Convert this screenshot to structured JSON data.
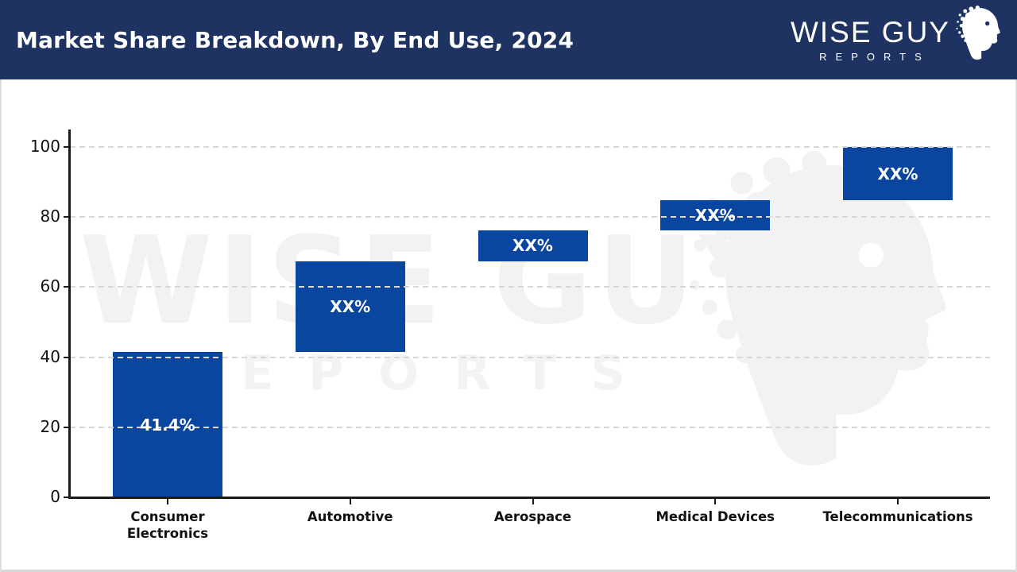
{
  "header": {
    "title": "Market Share Breakdown, By End Use, 2024",
    "bg_color": "#1f3363",
    "brand": {
      "name": "WISE GUY",
      "sub": "REPORTS"
    }
  },
  "watermark": {
    "line1": "WISE GUY",
    "line2": "REPORTS"
  },
  "chart_data": {
    "type": "bar",
    "subtype": "waterfall",
    "title": "Market Share Breakdown, By End Use, 2024",
    "categories": [
      "Consumer Electronics",
      "Automotive",
      "Aerospace",
      "Medical Devices",
      "Telecommunications"
    ],
    "x_labels": [
      "Consumer\nElectronics",
      "Automotive",
      "Aerospace",
      "Medical Devices",
      "Telecommunications"
    ],
    "segments": [
      {
        "label": "Consumer Electronics",
        "start": 0,
        "end": 41.4,
        "value_label": "41.4%"
      },
      {
        "label": "Automotive",
        "start": 41.4,
        "end": 67.4,
        "value_label": "XX%"
      },
      {
        "label": "Aerospace",
        "start": 67.4,
        "end": 76.2,
        "value_label": "XX%"
      },
      {
        "label": "Medical Devices",
        "start": 76.2,
        "end": 84.8,
        "value_label": "XX%"
      },
      {
        "label": "Telecommunications",
        "start": 84.8,
        "end": 100,
        "value_label": "XX%"
      }
    ],
    "y_ticks": [
      0,
      20,
      40,
      60,
      80,
      100
    ],
    "ylim": [
      0,
      105
    ],
    "xlabel": "",
    "ylabel": "",
    "grid": "horizontal-dashed, drawn over bars",
    "legend": "none",
    "bar_color": "#0a45a0",
    "value_label_color": "#ffffff",
    "grid_color": "#d7d7d7",
    "axis_color": "#1a1a1a"
  }
}
